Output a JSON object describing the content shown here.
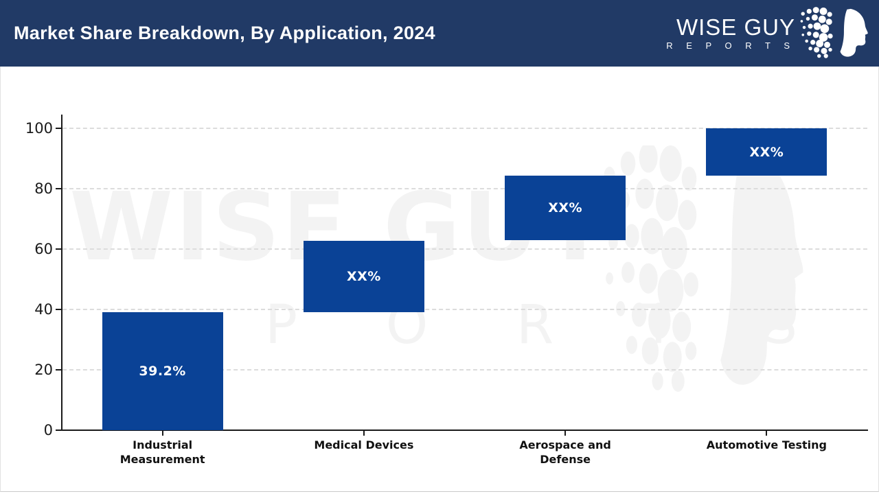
{
  "header": {
    "title": "Market Share Breakdown, By Application, 2024",
    "logo": {
      "name": "WISE GUY",
      "subtitle": "R E P O R T S"
    }
  },
  "watermark": {
    "line1": "WISE GUY",
    "line2": "P O R T S"
  },
  "chart_data": {
    "type": "bar",
    "subtype": "waterfall",
    "title": "Market Share Breakdown, By Application, 2024",
    "categories": [
      "Industrial\nMeasurement",
      "Medical Devices",
      "Aerospace and\nDefense",
      "Automotive Testing"
    ],
    "segments": [
      {
        "category": "Industrial Measurement",
        "start": 0,
        "end": 39.2,
        "label": "39.2%"
      },
      {
        "category": "Medical Devices",
        "start": 39.2,
        "end": 62.7,
        "label": "XX%"
      },
      {
        "category": "Aerospace and Defense",
        "start": 63.0,
        "end": 84.3,
        "label": "XX%"
      },
      {
        "category": "Automotive Testing",
        "start": 84.3,
        "end": 100,
        "label": "XX%"
      }
    ],
    "ylim": [
      0,
      105
    ],
    "yticks": [
      0,
      20,
      40,
      60,
      80,
      100
    ],
    "xlabel": "",
    "ylabel": "",
    "grid": "horizontal-dashed",
    "legend": "none",
    "bar_color": "#0A4296",
    "bar_label_color": "#FFFFFF",
    "header_color": "#213A66"
  }
}
